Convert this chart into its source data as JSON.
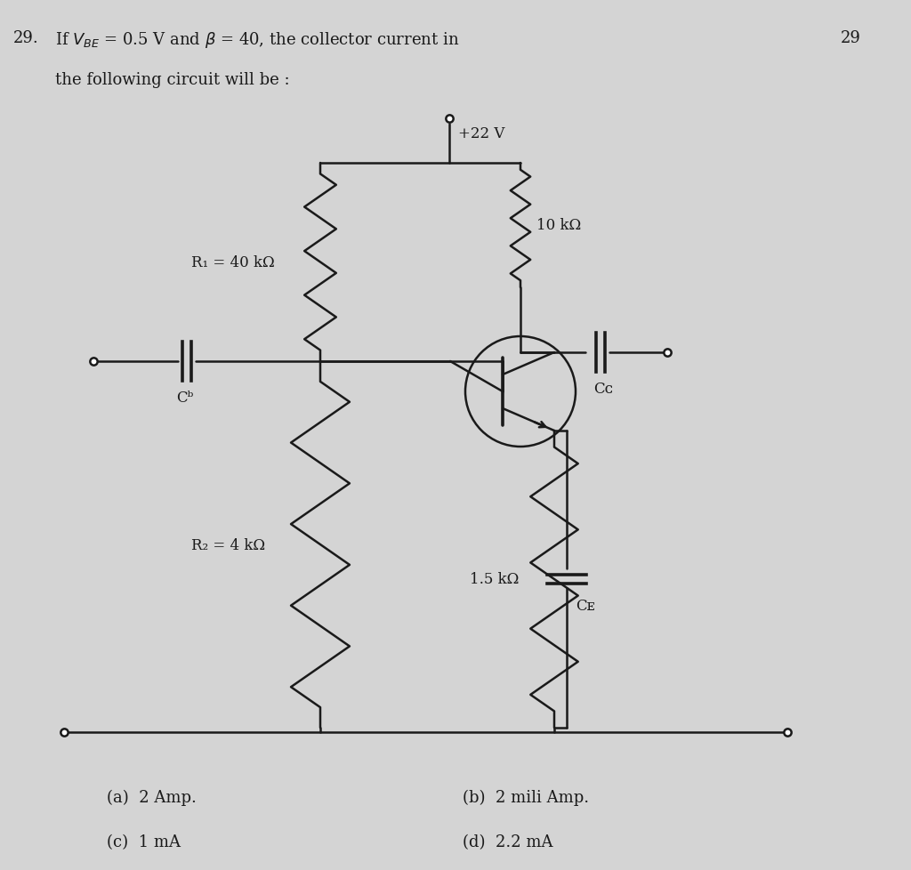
{
  "bg_color": "#d4d4d4",
  "vcc_label": "+22 V",
  "r1_label": "R₁ = 40 kΩ",
  "r2_label": "R₂ = 4 kΩ",
  "rc_label": "10 kΩ",
  "re_label": "1.5 kΩ",
  "cb_label": "Cᵇ",
  "cc_label": "Cᴄ",
  "ce_label": "Cᴇ",
  "ans_a": "(a)  2 Amp.",
  "ans_b": "(b)  2 mili Amp.",
  "ans_c": "(c)  1 mA",
  "ans_d": "(d)  2.2 mA",
  "line_color": "#1a1a1a",
  "text_color": "#1a1a1a"
}
